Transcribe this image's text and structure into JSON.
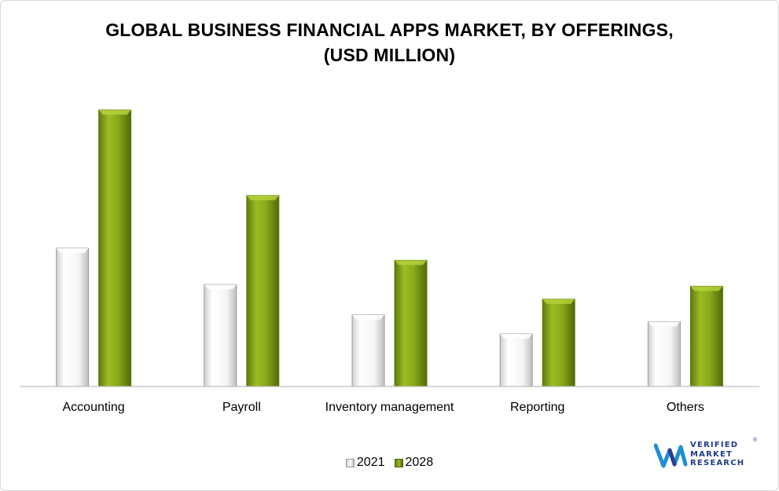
{
  "chart_data": {
    "type": "bar",
    "title_lines": [
      "GLOBAL BUSINESS FINANCIAL APPS MARKET, BY OFFERINGS,",
      "(USD MILLION)"
    ],
    "categories": [
      "Accounting",
      "Payroll",
      "Inventory management",
      "Reporting",
      "Others"
    ],
    "series": [
      {
        "name": "2021",
        "values": [
          160,
          118,
          83,
          61,
          75
        ]
      },
      {
        "name": "2028",
        "values": [
          320,
          221,
          146,
          101,
          116
        ]
      }
    ],
    "ylim": [
      0,
      340
    ],
    "grid": false,
    "legend_position": "bottom"
  },
  "legend": {
    "items": [
      "2021",
      "2028"
    ]
  },
  "colors": {
    "series_2021": "#f2f2f2",
    "series_2021_edge": "#9a9a9a",
    "series_2028": "#8aa818",
    "series_2028_dark": "#5e7a10",
    "series_2028_light": "#b5d03a",
    "axis": "#bfbfbf"
  },
  "logo": {
    "mark_icon": "vmr-logo-icon",
    "lines": [
      "VERIFIED",
      "MARKET",
      "RESEARCH"
    ],
    "registered": "®"
  }
}
